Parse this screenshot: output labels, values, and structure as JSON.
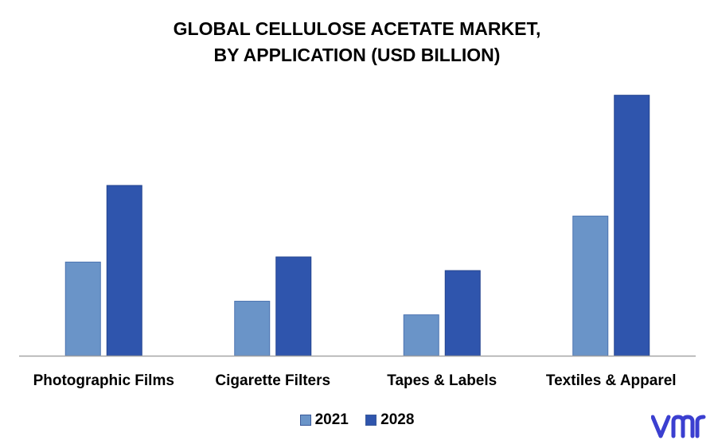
{
  "chart_data": {
    "type": "bar",
    "title_lines": [
      "GLOBAL CELLULOSE ACETATE MARKET,",
      "BY APPLICATION (USD BILLION)"
    ],
    "categories": [
      "Photographic Films",
      "Cigarette Filters",
      "Tapes & Labels",
      "Textiles & Apparel"
    ],
    "series": [
      {
        "name": "2021",
        "values": [
          1.1,
          0.64,
          0.48,
          1.64
        ],
        "color": "#6a94c8"
      },
      {
        "name": "2028",
        "values": [
          2.0,
          1.16,
          1.0,
          3.06
        ],
        "color": "#2f55ad"
      }
    ],
    "ylim": [
      0,
      3.3
    ],
    "grid": false,
    "legend_position": "bottom",
    "ytick_labels_shown": false
  },
  "logo": {
    "text": "vmr",
    "color": "#3b3fd0"
  }
}
